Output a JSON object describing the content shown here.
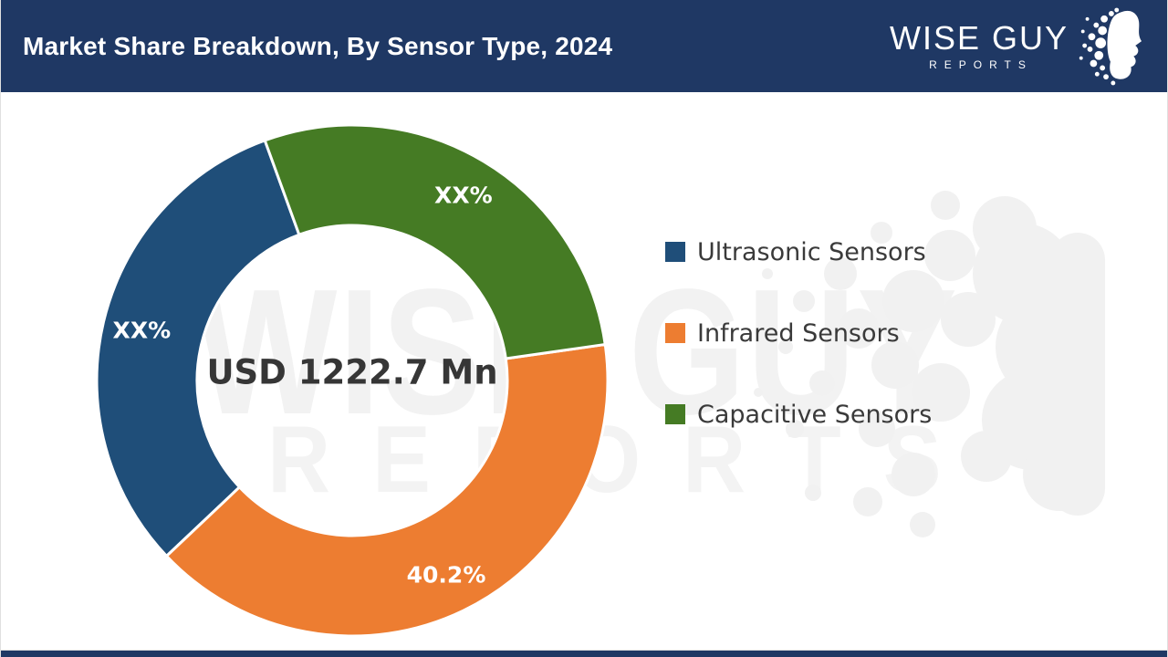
{
  "header": {
    "title": "Market Share Breakdown, By Sensor Type, 2024",
    "background_color": "#1f3864",
    "logo": {
      "name": "WISE GUY",
      "sub": "REPORTS"
    }
  },
  "chart_data": {
    "type": "pie",
    "donut": true,
    "title": "Market Share Breakdown, By Sensor Type, 2024",
    "center_label": "USD 1222.7 Mn",
    "start_angle_deg": 110,
    "direction": "counterclockwise",
    "legend_position": "right",
    "segments": [
      {
        "name": "Ultrasonic Sensors",
        "label": "XX%",
        "value": 31.5,
        "color": "#1f4e79"
      },
      {
        "name": "Infrared Sensors",
        "label": "40.2%",
        "value": 40.2,
        "color": "#ed7d31"
      },
      {
        "name": "Capacitive Sensors",
        "label": "XX%",
        "value": 28.3,
        "color": "#457b24"
      }
    ]
  },
  "legend": {
    "items": [
      {
        "label": "Ultrasonic Sensors",
        "color": "#1f4e79"
      },
      {
        "label": "Infrared Sensors",
        "color": "#ed7d31"
      },
      {
        "label": "Capacitive Sensors",
        "color": "#457b24"
      }
    ]
  },
  "watermark": {
    "line1": "WISE GUY",
    "line2": "REPORTS"
  }
}
